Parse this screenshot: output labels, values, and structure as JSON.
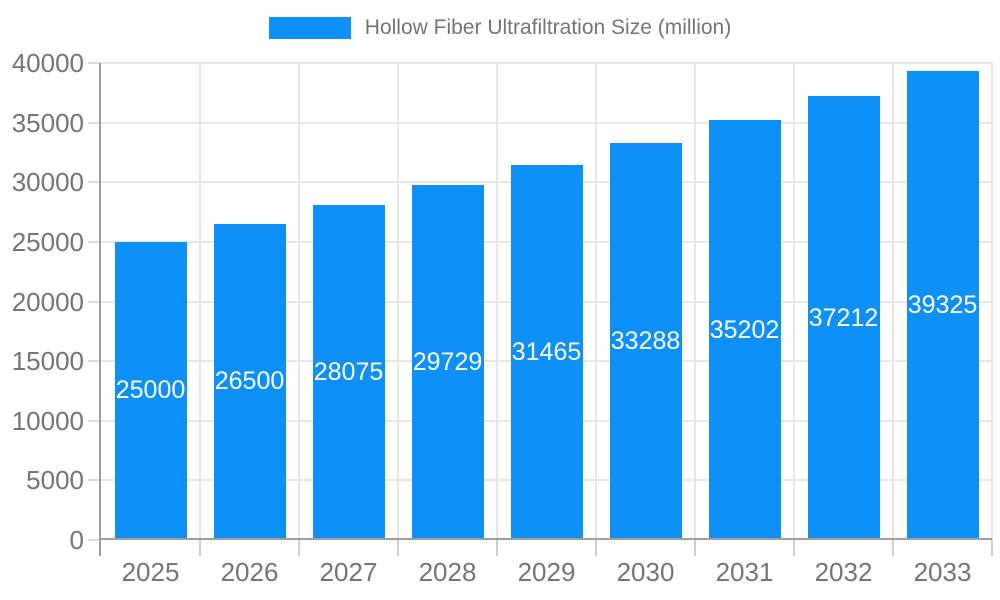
{
  "legend": {
    "label": "Hollow Fiber Ultrafiltration Size (million)"
  },
  "colors": {
    "bar": "#0E90F9",
    "bar_label": "#FFFFFF",
    "axis_text": "#757575",
    "grid": "#E7E7E7",
    "axis_line": "#9E9E9E",
    "x_tick": "#CFCFCF",
    "y_tick": "#DDDDDD",
    "background": "#FFFFFF"
  },
  "chart_data": {
    "type": "bar",
    "title": "Hollow Fiber Ultrafiltration Size (million)",
    "series_name": "Hollow Fiber Ultrafiltration Size (million)",
    "categories": [
      "2025",
      "2026",
      "2027",
      "2028",
      "2029",
      "2030",
      "2031",
      "2032",
      "2033"
    ],
    "values": [
      25000,
      26500,
      28075,
      29729,
      31465,
      33288,
      35202,
      37212,
      39325
    ],
    "y_tick_labels": [
      "0",
      "5000",
      "10000",
      "15000",
      "20000",
      "25000",
      "30000",
      "35000",
      "40000"
    ],
    "xlabel": "",
    "ylabel": "",
    "ylim": [
      0,
      40000
    ],
    "ytick_step": 5000,
    "grid": true,
    "legend_position": "top",
    "bar_labels": "centered-white"
  }
}
